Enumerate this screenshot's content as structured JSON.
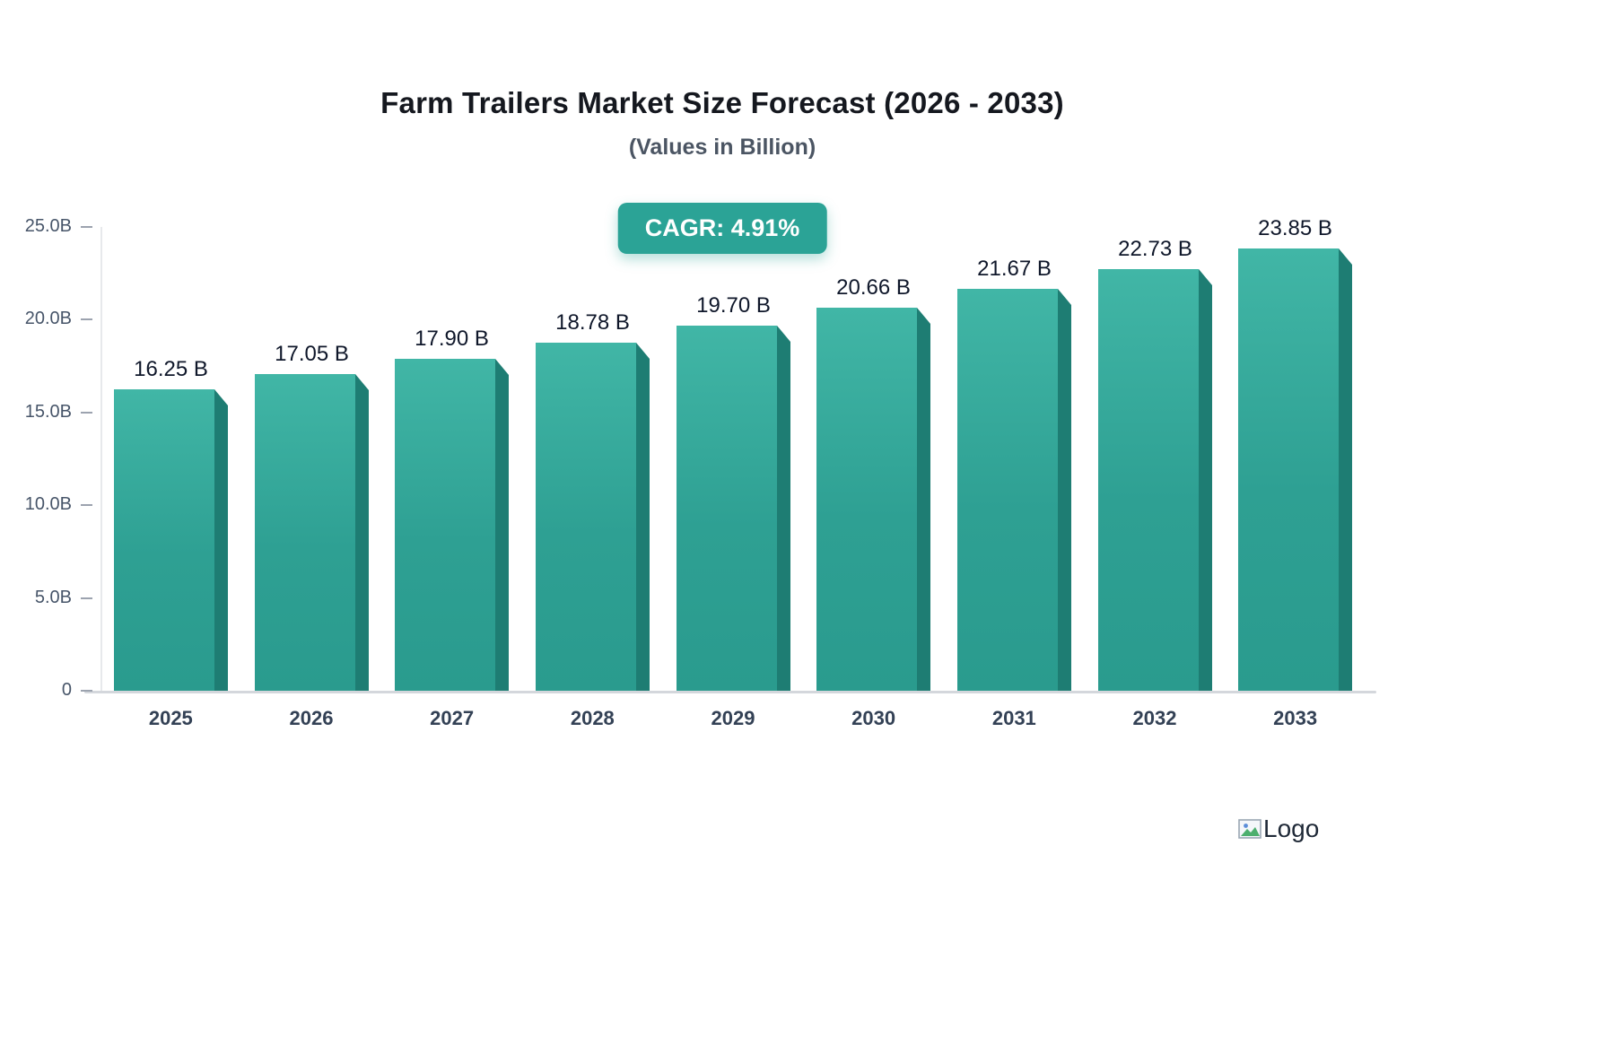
{
  "header": {
    "title": "Farm Trailers Market Size Forecast (2026 - 2033)",
    "subtitle": "(Values in Billion)"
  },
  "badge": {
    "label": "CAGR: 4.91%",
    "bg_color": "#2ba396",
    "text_color": "#ffffff"
  },
  "chart_data": {
    "type": "bar",
    "title": "Farm Trailers Market Size Forecast (2026 - 2033)",
    "subtitle": "(Values in Billion)",
    "categories": [
      "2025",
      "2026",
      "2027",
      "2028",
      "2029",
      "2030",
      "2031",
      "2032",
      "2033"
    ],
    "values": [
      16.25,
      17.05,
      17.9,
      18.78,
      19.7,
      20.66,
      21.67,
      22.73,
      23.85
    ],
    "value_labels": [
      "16.25 B",
      "17.05 B",
      "17.90 B",
      "18.78 B",
      "19.70 B",
      "20.66 B",
      "21.67 B",
      "22.73 B",
      "23.85 B"
    ],
    "xlabel": "",
    "ylabel": "",
    "ylim": [
      0,
      25
    ],
    "yticks": [
      {
        "value": 0,
        "label": "0"
      },
      {
        "value": 5,
        "label": "5.0B"
      },
      {
        "value": 10,
        "label": "10.0B"
      },
      {
        "value": 15,
        "label": "15.0B"
      },
      {
        "value": 20,
        "label": "20.0B"
      },
      {
        "value": 25,
        "label": "25.0B"
      }
    ],
    "grid": false,
    "legend": false,
    "bar_color_top": "#41b6a6",
    "bar_color_bottom": "#2a9b8e",
    "bar_side_color": "#1e7d73"
  },
  "footer": {
    "logo_text": "Logo"
  }
}
